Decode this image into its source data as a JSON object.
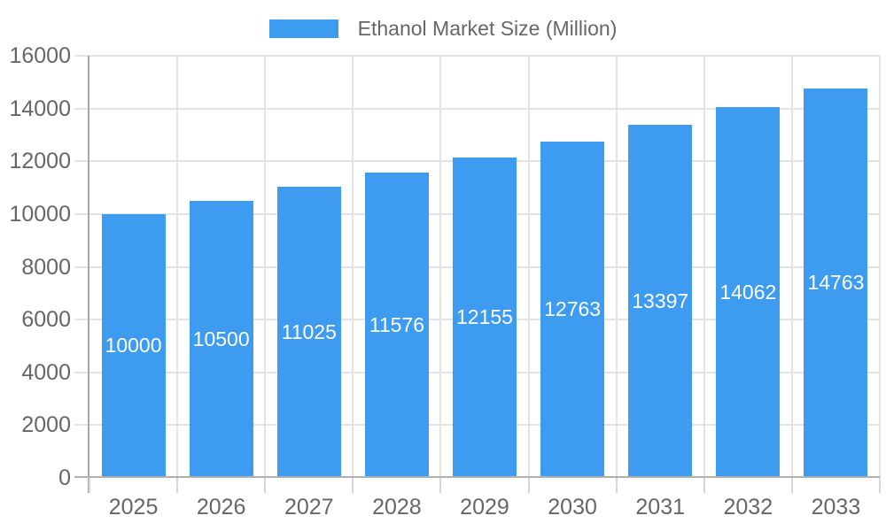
{
  "legend": {
    "label": "Ethanol Market Size (Million)"
  },
  "chart_data": {
    "type": "bar",
    "title": "Ethanol Market Size (Million)",
    "series_name": "Ethanol Market Size (Million)",
    "categories": [
      "2025",
      "2026",
      "2027",
      "2028",
      "2029",
      "2030",
      "2031",
      "2032",
      "2033"
    ],
    "values": [
      10000,
      10500,
      11025,
      11576,
      12155,
      12763,
      13397,
      14062,
      14763
    ],
    "bar_labels_shown": true,
    "xlabel": "",
    "ylabel": "",
    "ylim": [
      0,
      16000
    ],
    "ytick_step": 2000,
    "y_ticks": [
      0,
      2000,
      4000,
      6000,
      8000,
      10000,
      12000,
      14000,
      16000
    ],
    "grid": "both",
    "legend_position": "top-center",
    "colors": {
      "bar": "#3d9bf0",
      "bar_label_text": "#ffffff",
      "axis_text": "#666666",
      "gridline": "#e3e3e3",
      "axis_line": "#a6a6a6"
    }
  }
}
